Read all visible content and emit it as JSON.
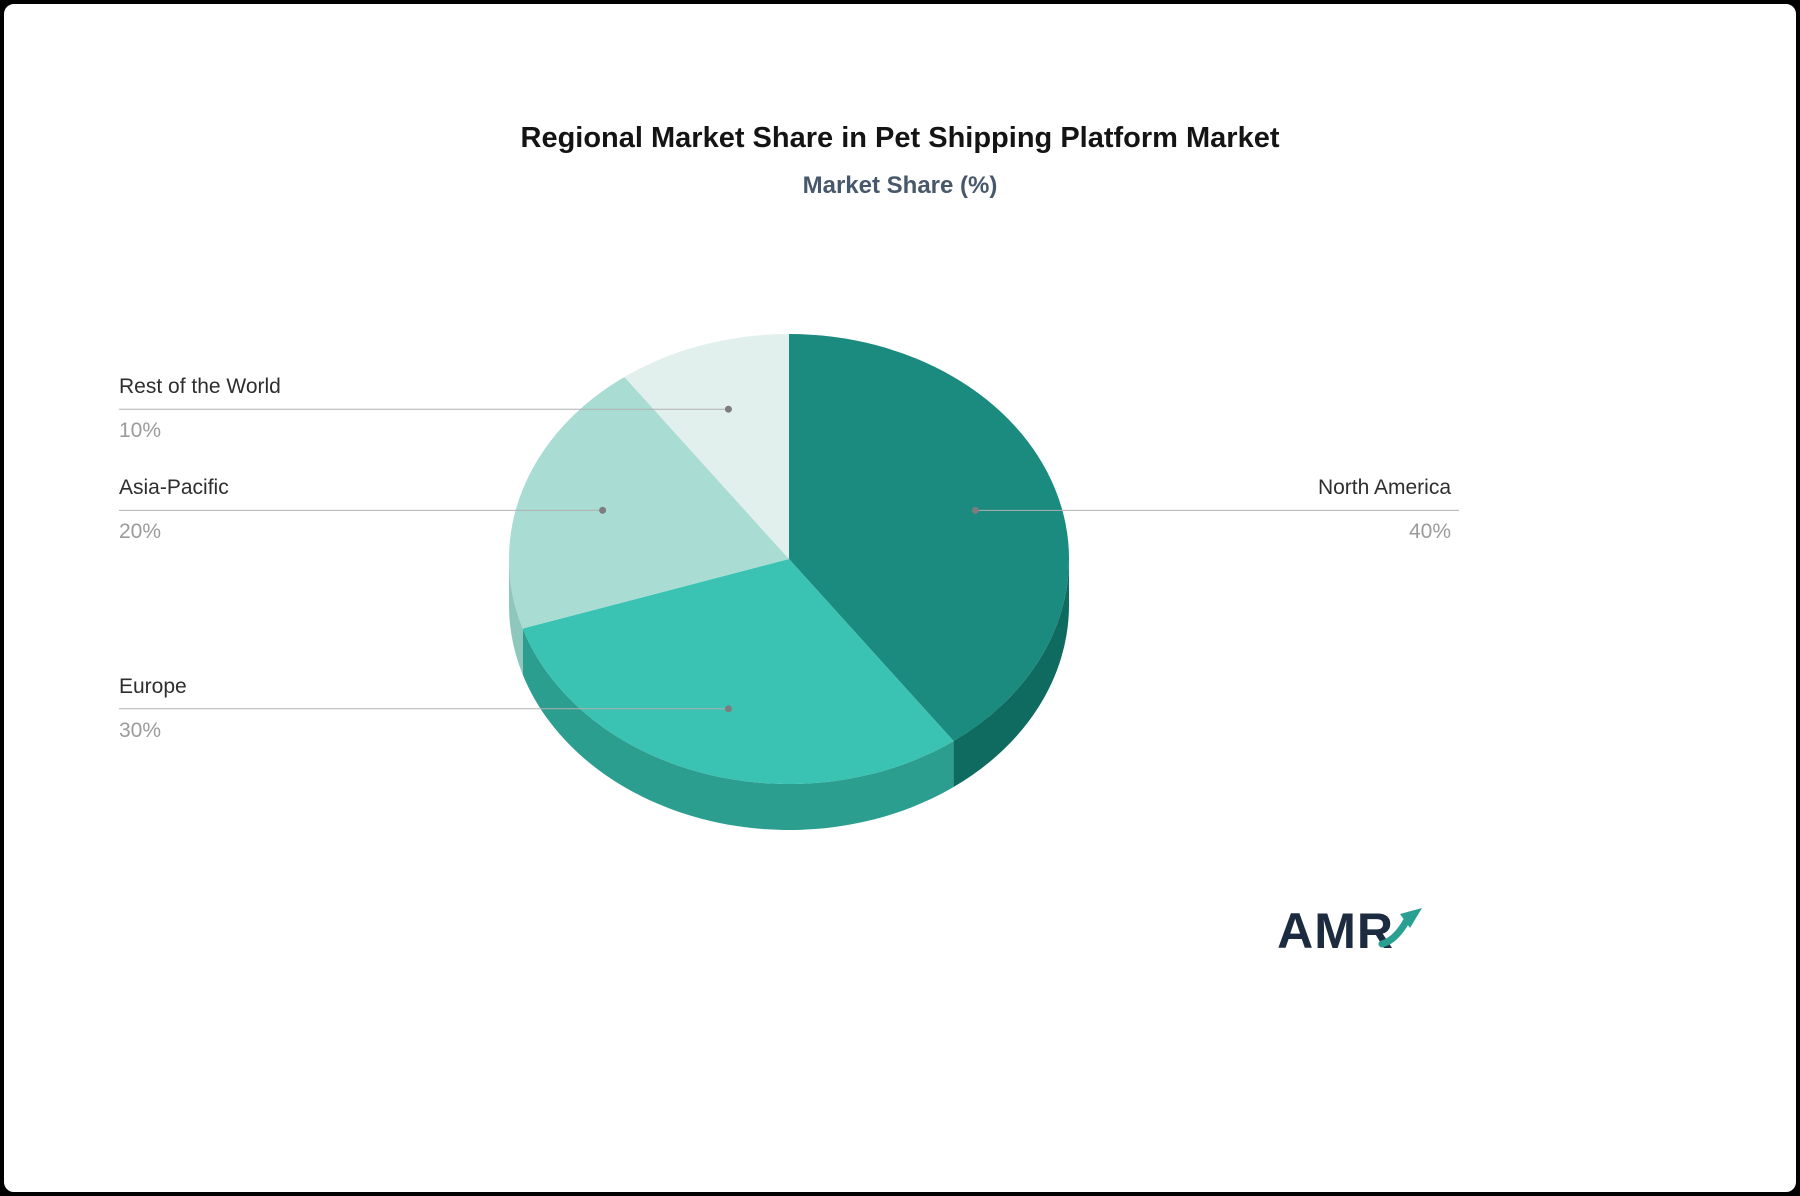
{
  "title": "Regional Market Share in Pet Shipping Platform Market",
  "subtitle": "Market Share (%)",
  "logo": {
    "text": "AMR",
    "arrow_color": "#2aa093"
  },
  "chart_data": {
    "type": "pie",
    "title": "Regional Market Share in Pet Shipping Platform Market",
    "subtitle": "Market Share (%)",
    "unit": "%",
    "style": "3d-pie",
    "start_angle_deg": 0,
    "direction": "clockwise",
    "legend": false,
    "slices": [
      {
        "label": "North America",
        "value": 40,
        "color": "#1b8a7f",
        "side_color": "#0f6a60",
        "label_side": "right"
      },
      {
        "label": "Europe",
        "value": 30,
        "color": "#3ac3b2",
        "side_color": "#2b9e90",
        "label_side": "left"
      },
      {
        "label": "Asia-Pacific",
        "value": 20,
        "color": "#a9dcd3",
        "side_color": "#8ec7bb",
        "label_side": "left"
      },
      {
        "label": "Rest of the World",
        "value": 10,
        "color": "#e2f0ed",
        "side_color": "#c3ddd7",
        "label_side": "left"
      }
    ],
    "leader_line_color": "#b0b0b0",
    "leader_dot_color": "#7d7d7d"
  }
}
